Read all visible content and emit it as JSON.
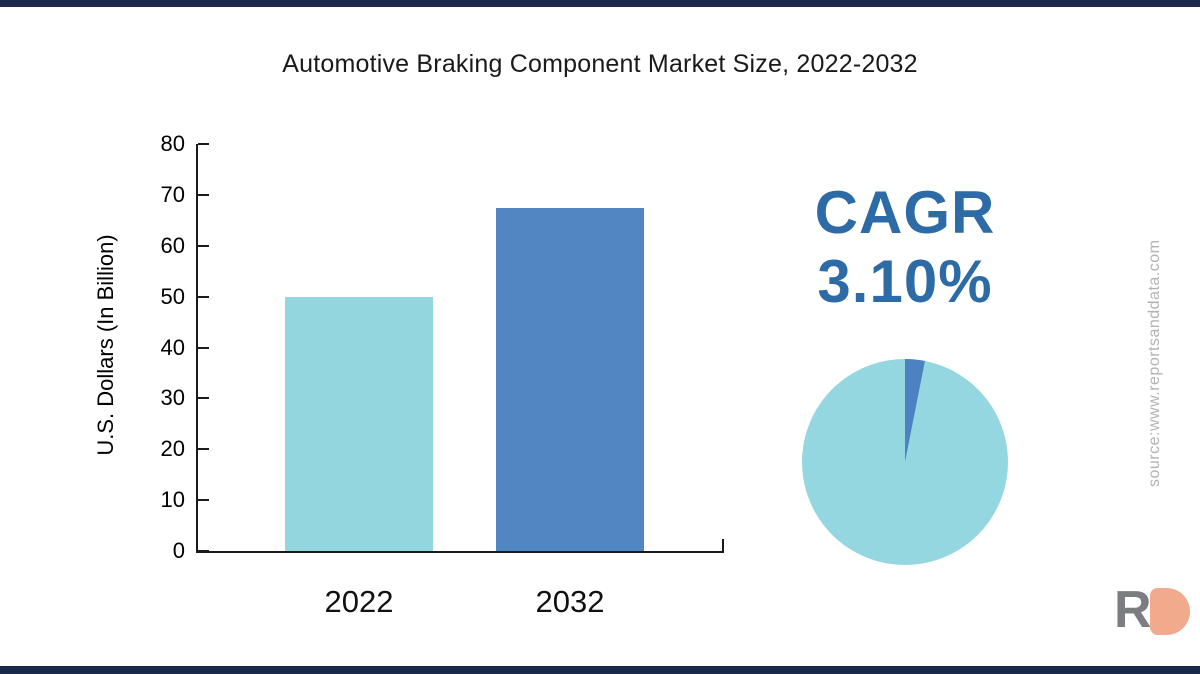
{
  "page": {
    "background": "#ffffff",
    "edge_bar_color": "#1b294a"
  },
  "title": "Automotive Braking Component Market Size, 2022-2032",
  "chart_data": {
    "type": "bar",
    "title": "Automotive Braking Component Market Size, 2022-2032",
    "categories": [
      "2022",
      "2032"
    ],
    "values": [
      50,
      67.5
    ],
    "bar_colors": [
      "#93d6de",
      "#5087c2"
    ],
    "xlabel": "",
    "ylabel": "U.S. Dollars (In Billion)",
    "ylim": [
      0,
      80
    ],
    "yticks": [
      0,
      10,
      20,
      30,
      40,
      50,
      60,
      70,
      80
    ],
    "grid": false,
    "legend": false
  },
  "cagr": {
    "label": "CAGR",
    "value": "3.10%",
    "percent": 3.1,
    "color": "#2d6ba6"
  },
  "pie": {
    "type": "pie",
    "slice_percent": 3.1,
    "slice_color": "#4d82c0",
    "body_color": "#95d7e0"
  },
  "source": {
    "text": "source:www.reportsanddata.com",
    "color": "#b3b3b3"
  },
  "logo": {
    "letter": "R",
    "letter_color": "#7b7d80",
    "shape_color": "#f2aa8d"
  }
}
